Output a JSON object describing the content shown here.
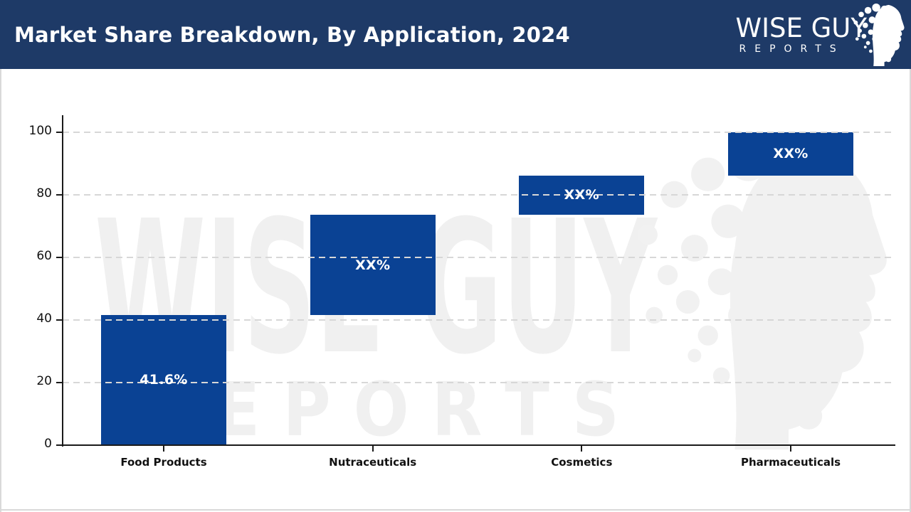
{
  "header": {
    "title": "Market Share Breakdown, By Application, 2024",
    "bg_color": "#1e3a67",
    "logo": {
      "name": "WISE GUY",
      "tagline": "REPORTS"
    }
  },
  "watermark": {
    "line1": "WISE GUY",
    "line2": "R E P O R T S",
    "color": "#f0f0f0"
  },
  "chart_data": {
    "type": "bar",
    "subtype": "waterfall",
    "title": "Market Share Breakdown, By Application, 2024",
    "categories": [
      "Food Products",
      "Nutraceuticals",
      "Cosmetics",
      "Pharmaceuticals"
    ],
    "series": [
      {
        "name": "Market share (%)",
        "segments": [
          {
            "category": "Food Products",
            "start": 0,
            "end": 41.6,
            "label": "41.6%"
          },
          {
            "category": "Nutraceuticals",
            "start": 41.6,
            "end": 73.6,
            "label": "XX%"
          },
          {
            "category": "Cosmetics",
            "start": 73.6,
            "end": 86.2,
            "label": "XX%"
          },
          {
            "category": "Pharmaceuticals",
            "start": 86.2,
            "end": 100,
            "label": "XX%"
          }
        ]
      }
    ],
    "xlabel": "",
    "ylabel": "",
    "y_ticks": [
      0,
      20,
      40,
      60,
      80,
      100
    ],
    "ylim": [
      0,
      105.5
    ],
    "grid": "horizontal-dashed",
    "grid_color": "#d7d7d7",
    "bar_color": "#0a4294",
    "bar_label_color": "#ffffff",
    "axis_color": "#1a1a1a",
    "tick_label_color": "#111111",
    "legend": "none"
  }
}
